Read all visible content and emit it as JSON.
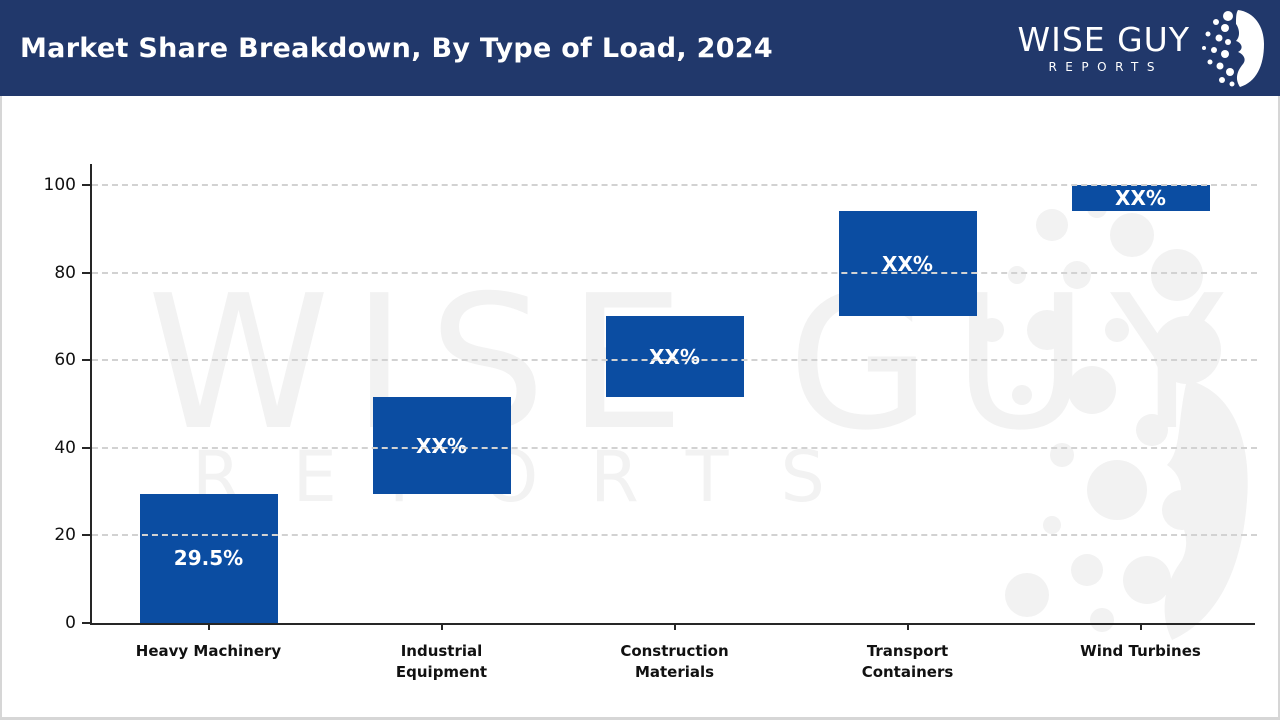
{
  "header": {
    "title": "Market Share Breakdown, By Type of Load, 2024",
    "bg_color": "#21386b",
    "logo": {
      "line1": "WISE GUY",
      "line2": "REPORTS"
    }
  },
  "watermark": {
    "line1": "WISE GUY",
    "line2": "REPORTS",
    "color": "#f2f2f2"
  },
  "chart_data": {
    "type": "bar",
    "subtype": "waterfall",
    "title": "Market Share Breakdown, By Type of Load, 2024",
    "categories": [
      "Heavy Machinery",
      "Industrial Equipment",
      "Construction Materials",
      "Transport Containers",
      "Wind Turbines"
    ],
    "segments": [
      {
        "category": "Heavy Machinery",
        "lines": [
          "Heavy Machinery"
        ],
        "start": 0,
        "end": 29.5,
        "label": "29.5%"
      },
      {
        "category": "Industrial Equipment",
        "lines": [
          "Industrial",
          "Equipment"
        ],
        "start": 29.5,
        "end": 51.5,
        "label": "XX%"
      },
      {
        "category": "Construction Materials",
        "lines": [
          "Construction",
          "Materials"
        ],
        "start": 51.5,
        "end": 70,
        "label": "XX%"
      },
      {
        "category": "Transport Containers",
        "lines": [
          "Transport",
          "Containers"
        ],
        "start": 70,
        "end": 94,
        "label": "XX%"
      },
      {
        "category": "Wind Turbines",
        "lines": [
          "Wind Turbines"
        ],
        "start": 94,
        "end": 100,
        "label": "XX%"
      }
    ],
    "y_ticks": [
      0,
      20,
      40,
      60,
      80,
      100
    ],
    "ylim": [
      0,
      105
    ],
    "xlabel": "",
    "ylabel": "",
    "grid": "horizontal-dashed",
    "legend": "none",
    "bar_color": "#0b4da2",
    "bar_label_color": "#ffffff",
    "grid_color": "#d2d2d2",
    "axis_color": "#262626"
  }
}
